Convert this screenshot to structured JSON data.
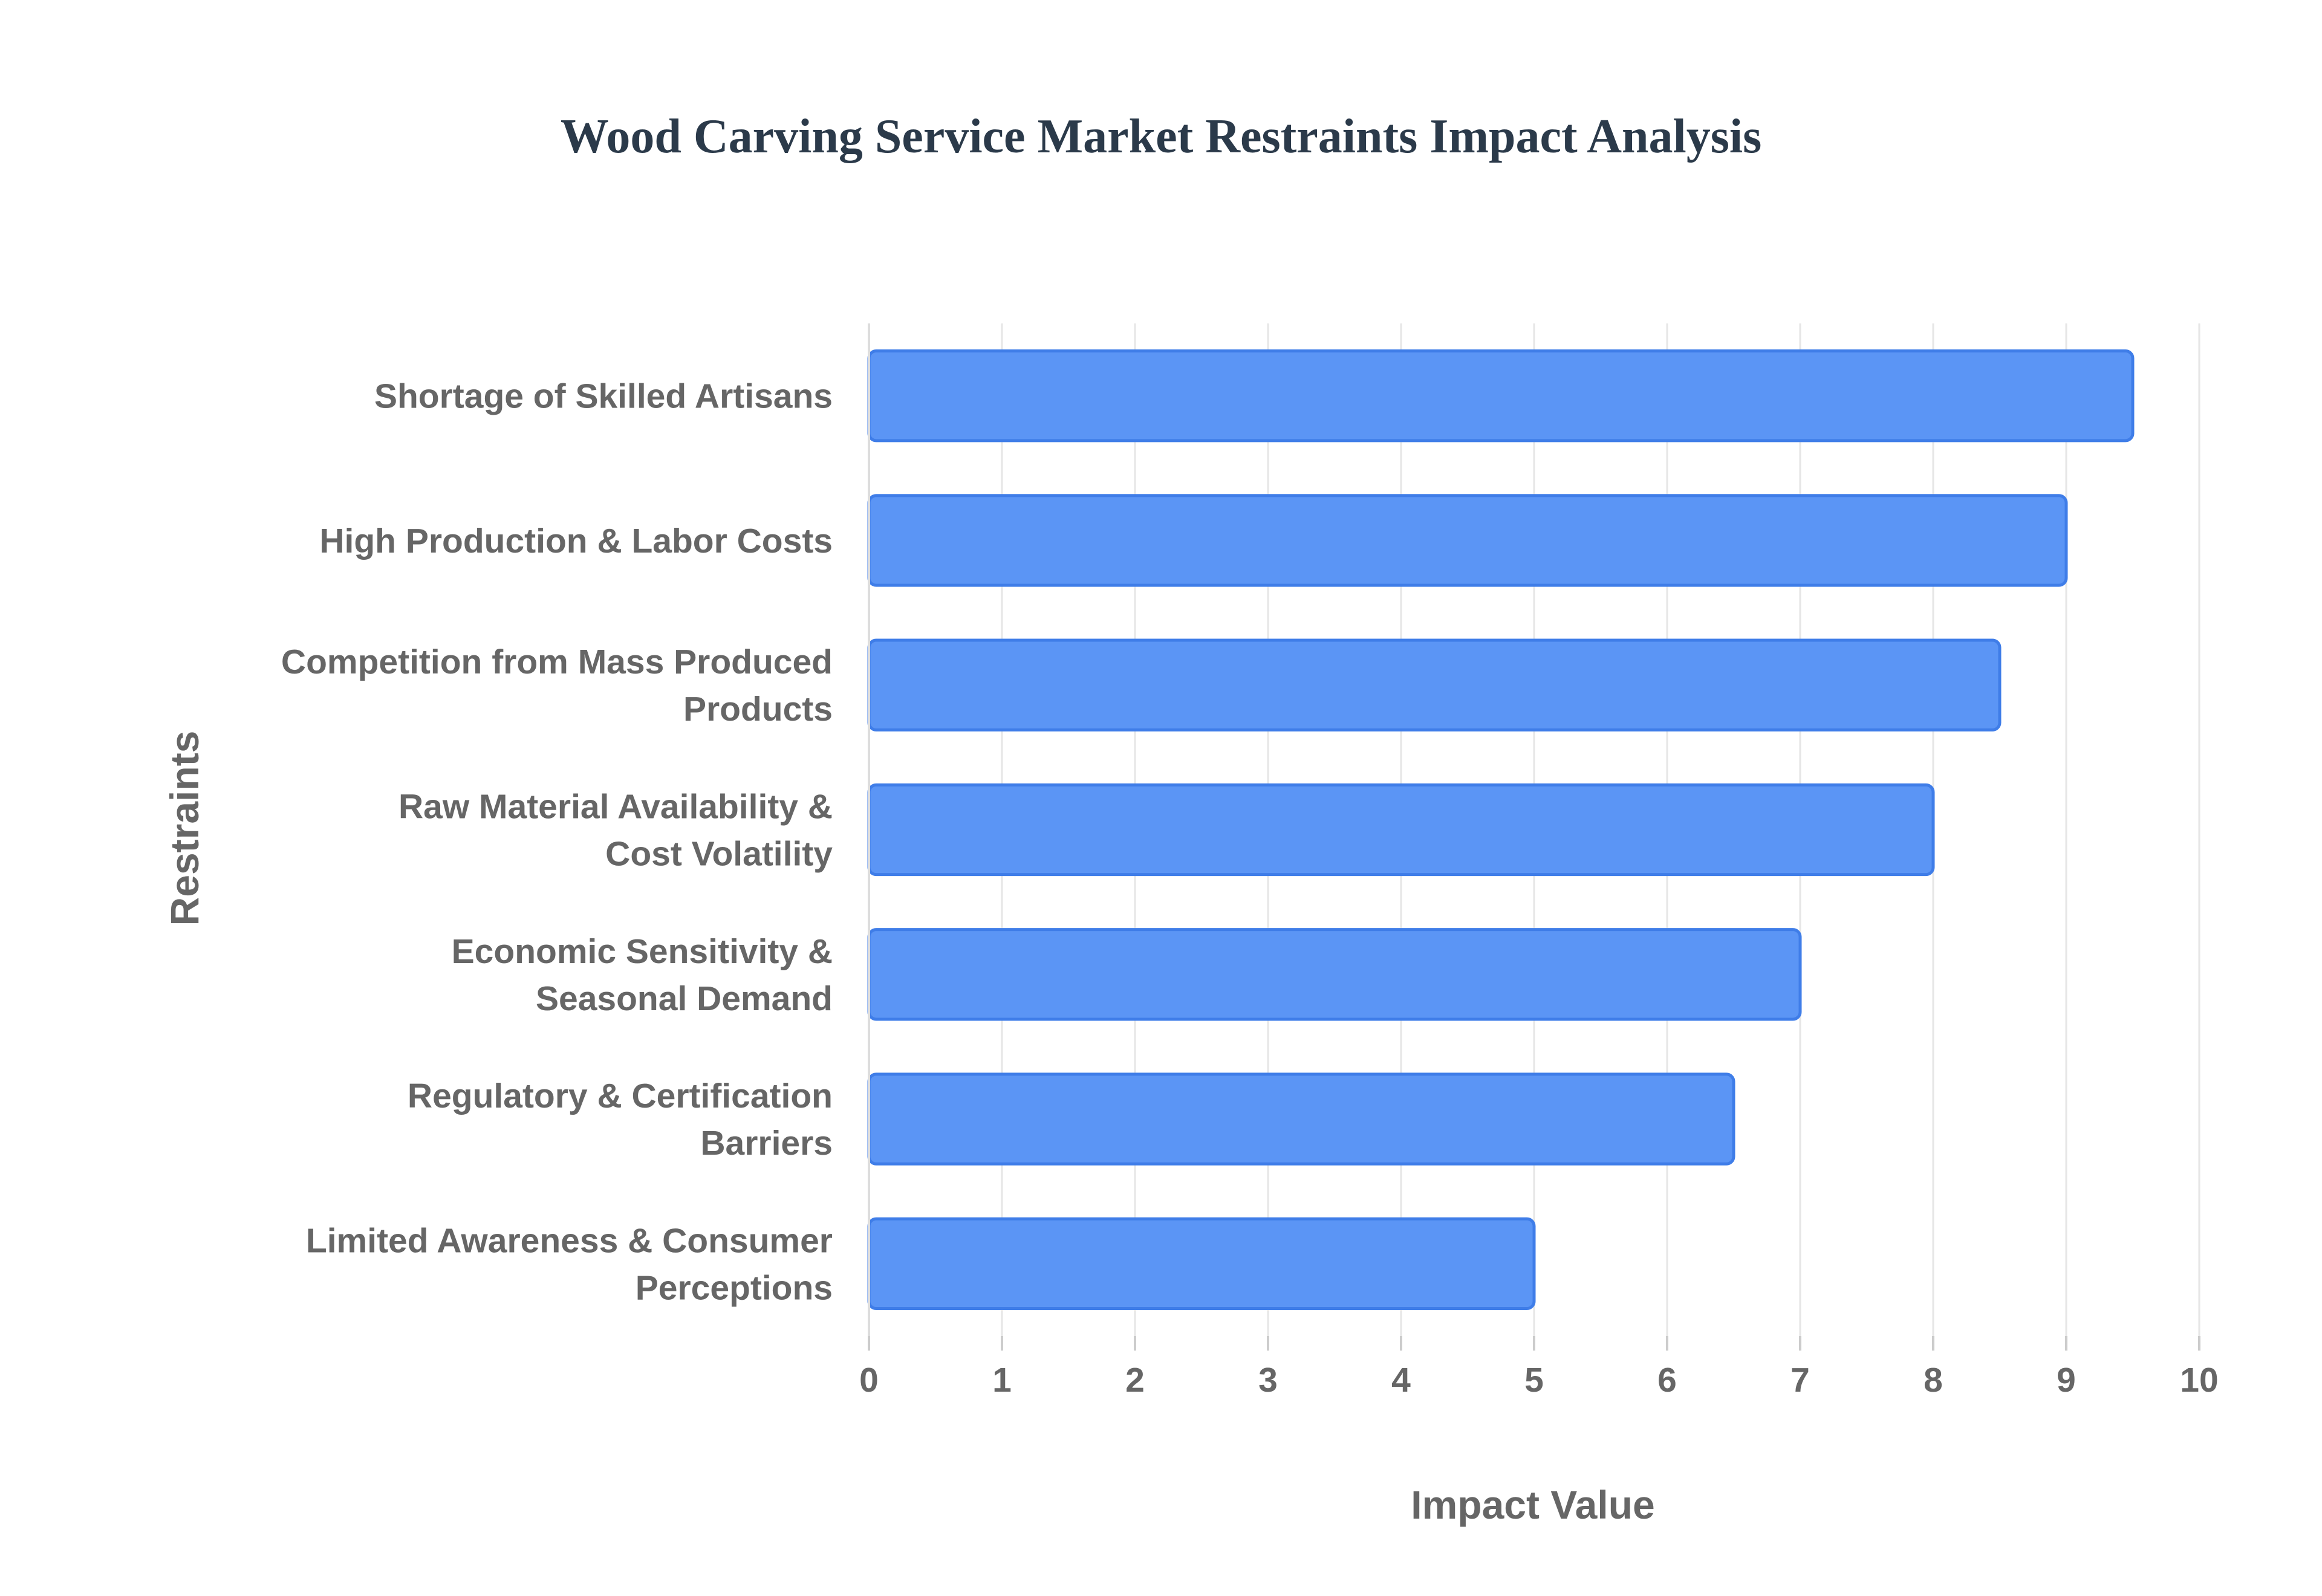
{
  "chart_data": {
    "type": "bar",
    "orientation": "horizontal",
    "title": "Wood Carving Service Market Restraints Impact Analysis",
    "xlabel": "Impact Value",
    "ylabel": "Restraints",
    "xlim": [
      0,
      10
    ],
    "xticks": [
      0,
      1,
      2,
      3,
      4,
      5,
      6,
      7,
      8,
      9,
      10
    ],
    "grid": true,
    "legend": false,
    "colors": {
      "bar_fill": "#5b95f5",
      "bar_stroke": "#3f7de8"
    },
    "categories": [
      "Shortage of Skilled Artisans",
      "High Production & Labor Costs",
      "Competition from Mass Produced Products",
      "Raw Material Availability & Cost Volatility",
      "Economic Sensitivity & Seasonal Demand",
      "Regulatory & Certification Barriers",
      "Limited Awareness & Consumer Perceptions"
    ],
    "category_lines": [
      [
        "Shortage of Skilled Artisans"
      ],
      [
        "High Production & Labor Costs"
      ],
      [
        "Competition from Mass Produced",
        "Products"
      ],
      [
        "Raw Material Availability &",
        "Cost Volatility"
      ],
      [
        "Economic Sensitivity &",
        "Seasonal Demand"
      ],
      [
        "Regulatory & Certification",
        "Barriers"
      ],
      [
        "Limited Awareness & Consumer",
        "Perceptions"
      ]
    ],
    "values": [
      9.5,
      9.0,
      8.5,
      8.0,
      7.0,
      6.5,
      5.0
    ]
  }
}
